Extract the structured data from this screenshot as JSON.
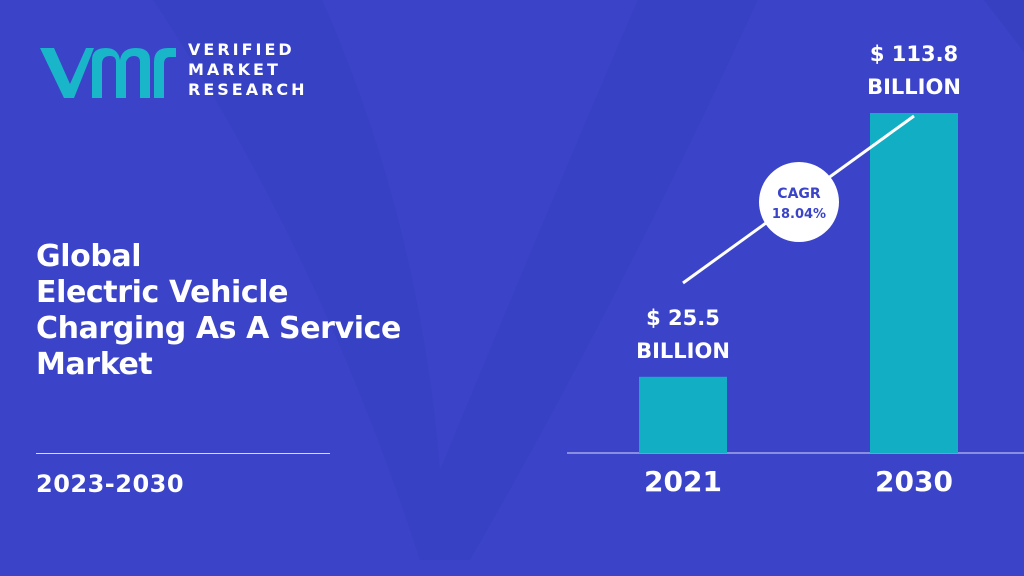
{
  "brand": {
    "lines": [
      "VERIFIED",
      "MARKET",
      "RESEARCH"
    ],
    "accent": "#18b6c8"
  },
  "title_lines": [
    "Global",
    "Electric Vehicle",
    "Charging As A Service",
    "Market"
  ],
  "period": "2023-2030",
  "colors": {
    "background": "#3b44c8",
    "bar": "#12aec4",
    "text": "#ffffff"
  },
  "chart_data": {
    "type": "bar",
    "categories": [
      "2021",
      "2030"
    ],
    "values": [
      25.5,
      113.8
    ],
    "value_labels": [
      [
        "$ 25.5",
        "BILLION"
      ],
      [
        "$ 113.8",
        "BILLION"
      ]
    ],
    "cagr": {
      "label": "CAGR",
      "value": "18.04%"
    },
    "grid": false
  }
}
